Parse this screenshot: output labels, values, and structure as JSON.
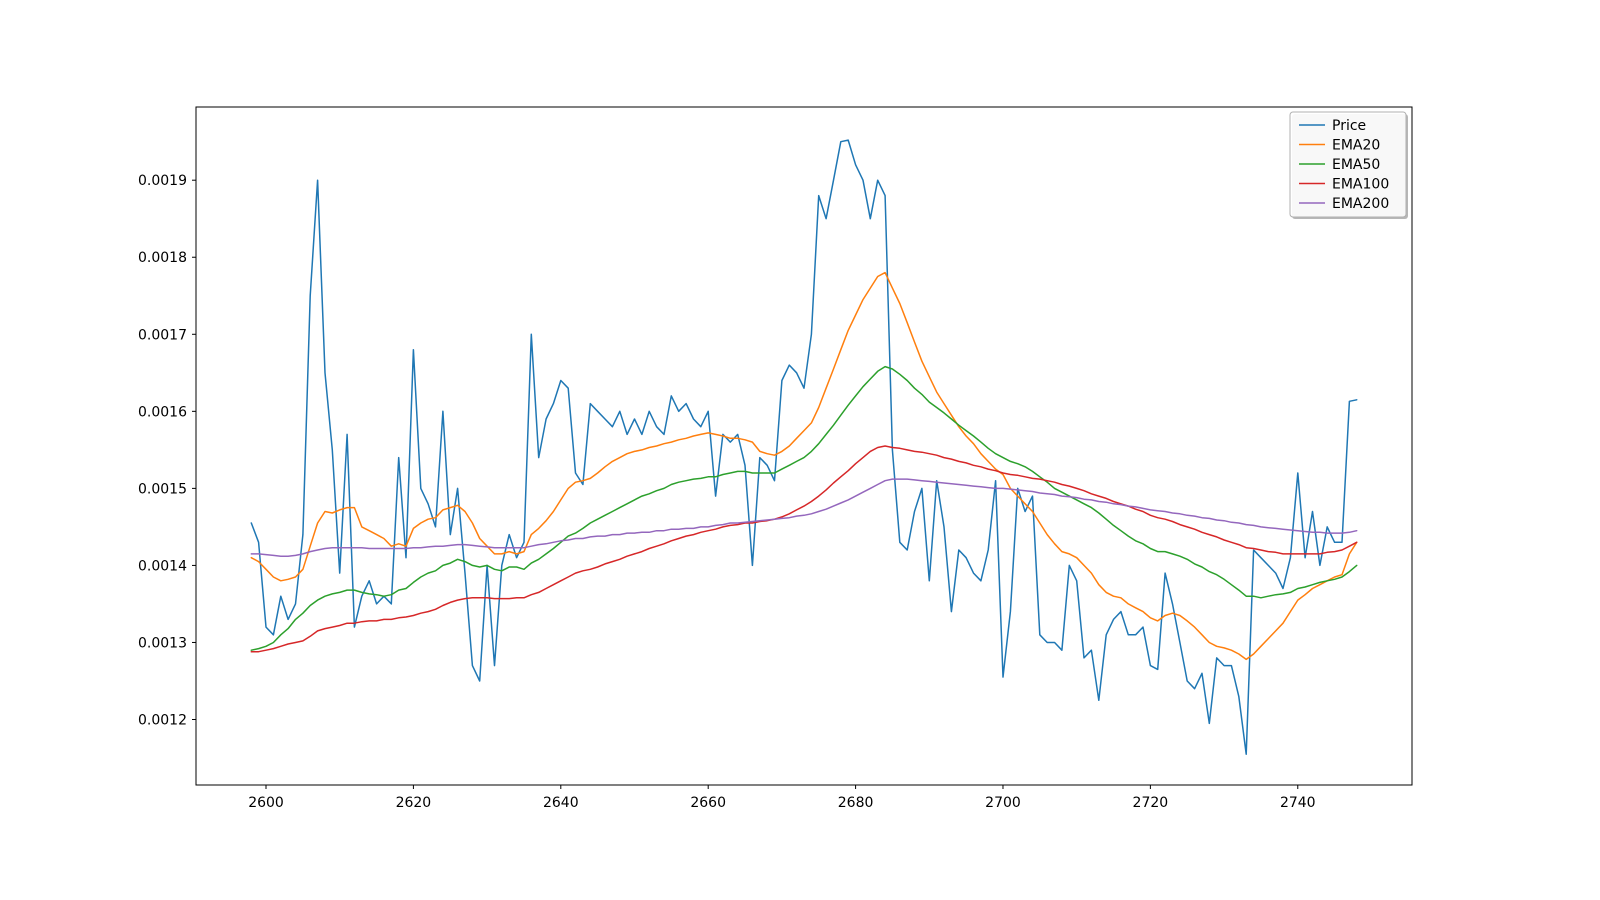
{
  "figure": {
    "background": "#ffffff",
    "plot_background": "#ffffff",
    "spine_color": "#000000",
    "text_color": "#000000"
  },
  "chart_data": {
    "type": "line",
    "title": "",
    "xlabel": "",
    "ylabel": "",
    "grid": false,
    "x_start": 2598,
    "x_step": 1,
    "xlim": [
      2590.5,
      2755.5
    ],
    "ylim": [
      0.001115,
      0.001995
    ],
    "xticks": [
      2600,
      2620,
      2640,
      2660,
      2680,
      2700,
      2720,
      2740
    ],
    "xtick_labels": [
      "2600",
      "2620",
      "2640",
      "2660",
      "2680",
      "2700",
      "2720",
      "2740"
    ],
    "yticks": [
      0.0012,
      0.0013,
      0.0014,
      0.0015,
      0.0016,
      0.0017,
      0.0018,
      0.0019
    ],
    "ytick_labels": [
      "0.0012",
      "0.0013",
      "0.0014",
      "0.0015",
      "0.0016",
      "0.0017",
      "0.0018",
      "0.0019"
    ],
    "legend": {
      "position": "upper right",
      "entries": [
        "Price",
        "EMA20",
        "EMA50",
        "EMA100",
        "EMA200"
      ]
    },
    "series": [
      {
        "name": "Price",
        "color": "#1f77b4",
        "values": [
          0.001455,
          0.00143,
          0.00132,
          0.00131,
          0.00136,
          0.00133,
          0.00135,
          0.00144,
          0.00175,
          0.0019,
          0.00165,
          0.00155,
          0.00139,
          0.00157,
          0.00132,
          0.00136,
          0.00138,
          0.00135,
          0.00136,
          0.00135,
          0.00154,
          0.00141,
          0.00168,
          0.0015,
          0.00148,
          0.00145,
          0.0016,
          0.00144,
          0.0015,
          0.00139,
          0.00127,
          0.00125,
          0.0014,
          0.00127,
          0.0014,
          0.00144,
          0.00141,
          0.00143,
          0.0017,
          0.00154,
          0.00159,
          0.00161,
          0.00164,
          0.00163,
          0.00152,
          0.001505,
          0.00161,
          0.0016,
          0.00159,
          0.00158,
          0.0016,
          0.00157,
          0.00159,
          0.00157,
          0.0016,
          0.00158,
          0.00157,
          0.00162,
          0.0016,
          0.00161,
          0.00159,
          0.00158,
          0.0016,
          0.00149,
          0.00157,
          0.00156,
          0.00157,
          0.00153,
          0.0014,
          0.00154,
          0.00153,
          0.00151,
          0.00164,
          0.00166,
          0.00165,
          0.00163,
          0.0017,
          0.00188,
          0.00185,
          0.0019,
          0.00195,
          0.001952,
          0.00192,
          0.0019,
          0.00185,
          0.0019,
          0.00188,
          0.00155,
          0.00143,
          0.00142,
          0.00147,
          0.0015,
          0.00138,
          0.00151,
          0.00145,
          0.00134,
          0.00142,
          0.00141,
          0.00139,
          0.00138,
          0.00142,
          0.00151,
          0.001255,
          0.00134,
          0.0015,
          0.00147,
          0.00149,
          0.00131,
          0.0013,
          0.0013,
          0.00129,
          0.0014,
          0.00138,
          0.00128,
          0.00129,
          0.001225,
          0.00131,
          0.00133,
          0.00134,
          0.00131,
          0.00131,
          0.00132,
          0.00127,
          0.001265,
          0.00139,
          0.00135,
          0.0013,
          0.00125,
          0.00124,
          0.00126,
          0.001195,
          0.00128,
          0.00127,
          0.00127,
          0.00123,
          0.001155,
          0.00142,
          0.00141,
          0.0014,
          0.00139,
          0.00137,
          0.00141,
          0.00152,
          0.00141,
          0.00147,
          0.0014,
          0.00145,
          0.00143,
          0.00143,
          0.001613,
          0.001615
        ]
      },
      {
        "name": "EMA20",
        "color": "#ff7f0e",
        "values": [
          0.00141,
          0.001405,
          0.001395,
          0.001385,
          0.00138,
          0.001382,
          0.001385,
          0.001395,
          0.001425,
          0.001455,
          0.00147,
          0.001468,
          0.001472,
          0.001475,
          0.001475,
          0.00145,
          0.001445,
          0.00144,
          0.001435,
          0.001425,
          0.001428,
          0.001425,
          0.001448,
          0.001455,
          0.00146,
          0.001462,
          0.001472,
          0.001475,
          0.001478,
          0.00147,
          0.001455,
          0.001435,
          0.001425,
          0.001415,
          0.001415,
          0.001418,
          0.001415,
          0.001418,
          0.00144,
          0.001448,
          0.001458,
          0.00147,
          0.001485,
          0.0015,
          0.001508,
          0.00151,
          0.001513,
          0.00152,
          0.001528,
          0.001535,
          0.00154,
          0.001545,
          0.001548,
          0.00155,
          0.001553,
          0.001555,
          0.001558,
          0.00156,
          0.001563,
          0.001565,
          0.001568,
          0.00157,
          0.001572,
          0.00157,
          0.001568,
          0.001565,
          0.001565,
          0.001563,
          0.00156,
          0.001548,
          0.001545,
          0.001543,
          0.001548,
          0.001555,
          0.001565,
          0.001575,
          0.001585,
          0.001605,
          0.00163,
          0.001655,
          0.00168,
          0.001705,
          0.001725,
          0.001745,
          0.00176,
          0.001775,
          0.00178,
          0.00176,
          0.00174,
          0.001715,
          0.00169,
          0.001665,
          0.001645,
          0.001625,
          0.00161,
          0.001595,
          0.00158,
          0.001568,
          0.001558,
          0.001545,
          0.001535,
          0.001525,
          0.001518,
          0.0015,
          0.00149,
          0.00148,
          0.00147,
          0.001455,
          0.00144,
          0.001428,
          0.001418,
          0.001415,
          0.00141,
          0.0014,
          0.00139,
          0.001375,
          0.001365,
          0.00136,
          0.001358,
          0.00135,
          0.001345,
          0.00134,
          0.001332,
          0.001328,
          0.001335,
          0.001338,
          0.001335,
          0.001328,
          0.00132,
          0.00131,
          0.0013,
          0.001295,
          0.001293,
          0.00129,
          0.001285,
          0.001278,
          0.001285,
          0.001295,
          0.001305,
          0.001315,
          0.001325,
          0.00134,
          0.001355,
          0.001362,
          0.00137,
          0.001375,
          0.00138,
          0.001385,
          0.001388,
          0.001415,
          0.00143
        ]
      },
      {
        "name": "EMA50",
        "color": "#2ca02c",
        "values": [
          0.00129,
          0.001292,
          0.001295,
          0.0013,
          0.00131,
          0.001318,
          0.00133,
          0.001338,
          0.001348,
          0.001355,
          0.00136,
          0.001363,
          0.001365,
          0.001368,
          0.001368,
          0.001365,
          0.001363,
          0.001362,
          0.00136,
          0.001362,
          0.001368,
          0.00137,
          0.001378,
          0.001385,
          0.00139,
          0.001393,
          0.0014,
          0.001403,
          0.001408,
          0.001405,
          0.0014,
          0.001398,
          0.0014,
          0.001395,
          0.001393,
          0.001398,
          0.001398,
          0.001395,
          0.001403,
          0.001408,
          0.001415,
          0.001422,
          0.00143,
          0.001438,
          0.001442,
          0.001448,
          0.001455,
          0.00146,
          0.001465,
          0.00147,
          0.001475,
          0.00148,
          0.001485,
          0.00149,
          0.001493,
          0.001497,
          0.0015,
          0.001505,
          0.001508,
          0.00151,
          0.001512,
          0.001513,
          0.001515,
          0.001515,
          0.001518,
          0.00152,
          0.001522,
          0.001522,
          0.00152,
          0.00152,
          0.00152,
          0.00152,
          0.001525,
          0.00153,
          0.001535,
          0.00154,
          0.001548,
          0.001558,
          0.00157,
          0.001582,
          0.001595,
          0.001608,
          0.00162,
          0.001632,
          0.001642,
          0.001652,
          0.001658,
          0.001655,
          0.001648,
          0.00164,
          0.00163,
          0.001622,
          0.001612,
          0.001605,
          0.001598,
          0.00159,
          0.001582,
          0.001575,
          0.001568,
          0.00156,
          0.001552,
          0.001545,
          0.00154,
          0.001535,
          0.001532,
          0.001528,
          0.001522,
          0.001515,
          0.001508,
          0.0015,
          0.001495,
          0.00149,
          0.001485,
          0.00148,
          0.001475,
          0.001468,
          0.00146,
          0.001452,
          0.001445,
          0.001438,
          0.001432,
          0.001428,
          0.001422,
          0.001418,
          0.001418,
          0.001415,
          0.001412,
          0.001408,
          0.001402,
          0.001398,
          0.001392,
          0.001388,
          0.001382,
          0.001375,
          0.001368,
          0.00136,
          0.00136,
          0.001358,
          0.00136,
          0.001362,
          0.001363,
          0.001365,
          0.00137,
          0.001372,
          0.001375,
          0.001378,
          0.00138,
          0.001382,
          0.001385,
          0.001392,
          0.0014
        ]
      },
      {
        "name": "EMA100",
        "color": "#d62728",
        "values": [
          0.001288,
          0.001288,
          0.00129,
          0.001292,
          0.001295,
          0.001298,
          0.0013,
          0.001302,
          0.001308,
          0.001315,
          0.001318,
          0.00132,
          0.001322,
          0.001325,
          0.001325,
          0.001327,
          0.001328,
          0.001328,
          0.00133,
          0.00133,
          0.001332,
          0.001333,
          0.001335,
          0.001338,
          0.00134,
          0.001343,
          0.001348,
          0.001352,
          0.001355,
          0.001357,
          0.001358,
          0.001358,
          0.001358,
          0.001357,
          0.001357,
          0.001357,
          0.001358,
          0.001358,
          0.001362,
          0.001365,
          0.00137,
          0.001375,
          0.00138,
          0.001385,
          0.00139,
          0.001393,
          0.001395,
          0.001398,
          0.001402,
          0.001405,
          0.001408,
          0.001412,
          0.001415,
          0.001418,
          0.001422,
          0.001425,
          0.001428,
          0.001432,
          0.001435,
          0.001438,
          0.00144,
          0.001443,
          0.001445,
          0.001447,
          0.00145,
          0.001452,
          0.001453,
          0.001455,
          0.001455,
          0.001457,
          0.001458,
          0.00146,
          0.001463,
          0.001467,
          0.001472,
          0.001477,
          0.001483,
          0.00149,
          0.001498,
          0.001507,
          0.001515,
          0.001523,
          0.001532,
          0.00154,
          0.001548,
          0.001553,
          0.001555,
          0.001553,
          0.001552,
          0.00155,
          0.001548,
          0.001547,
          0.001545,
          0.001543,
          0.00154,
          0.001538,
          0.001535,
          0.001533,
          0.00153,
          0.001528,
          0.001525,
          0.001523,
          0.00152,
          0.001518,
          0.001517,
          0.001515,
          0.001513,
          0.001512,
          0.00151,
          0.001508,
          0.001505,
          0.001503,
          0.0015,
          0.001497,
          0.001493,
          0.00149,
          0.001487,
          0.001483,
          0.00148,
          0.001477,
          0.001473,
          0.00147,
          0.001465,
          0.001462,
          0.00146,
          0.001457,
          0.001453,
          0.00145,
          0.001447,
          0.001443,
          0.00144,
          0.001437,
          0.001433,
          0.00143,
          0.001427,
          0.001423,
          0.001422,
          0.00142,
          0.001418,
          0.001417,
          0.001415,
          0.001415,
          0.001415,
          0.001415,
          0.001415,
          0.001415,
          0.001417,
          0.001418,
          0.00142,
          0.001425,
          0.00143
        ]
      },
      {
        "name": "EMA200",
        "color": "#9467bd",
        "values": [
          0.001415,
          0.001415,
          0.001414,
          0.001413,
          0.001412,
          0.001412,
          0.001413,
          0.001415,
          0.001418,
          0.00142,
          0.001422,
          0.001423,
          0.001423,
          0.001423,
          0.001423,
          0.001423,
          0.001422,
          0.001422,
          0.001422,
          0.001422,
          0.001422,
          0.001422,
          0.001423,
          0.001423,
          0.001424,
          0.001425,
          0.001425,
          0.001426,
          0.001427,
          0.001427,
          0.001426,
          0.001425,
          0.001424,
          0.001423,
          0.001423,
          0.001423,
          0.001423,
          0.001423,
          0.001425,
          0.001427,
          0.001428,
          0.00143,
          0.001432,
          0.001433,
          0.001435,
          0.001435,
          0.001437,
          0.001438,
          0.001438,
          0.00144,
          0.00144,
          0.001442,
          0.001442,
          0.001443,
          0.001443,
          0.001445,
          0.001445,
          0.001447,
          0.001447,
          0.001448,
          0.001448,
          0.00145,
          0.00145,
          0.001452,
          0.001453,
          0.001455,
          0.001455,
          0.001456,
          0.001457,
          0.001458,
          0.001459,
          0.00146,
          0.001461,
          0.001462,
          0.001464,
          0.001465,
          0.001467,
          0.00147,
          0.001473,
          0.001477,
          0.001481,
          0.001485,
          0.00149,
          0.001495,
          0.0015,
          0.001505,
          0.00151,
          0.001512,
          0.001512,
          0.001512,
          0.001511,
          0.00151,
          0.001509,
          0.001508,
          0.001507,
          0.001506,
          0.001505,
          0.001504,
          0.001503,
          0.001502,
          0.001501,
          0.0015,
          0.0015,
          0.001499,
          0.001498,
          0.001497,
          0.001496,
          0.001494,
          0.001493,
          0.001492,
          0.00149,
          0.001489,
          0.001488,
          0.001486,
          0.001485,
          0.001483,
          0.001482,
          0.00148,
          0.001479,
          0.001477,
          0.001476,
          0.001474,
          0.001472,
          0.001471,
          0.00147,
          0.001468,
          0.001467,
          0.001465,
          0.001464,
          0.001462,
          0.001461,
          0.001459,
          0.001458,
          0.001456,
          0.001455,
          0.001453,
          0.001452,
          0.00145,
          0.001449,
          0.001448,
          0.001447,
          0.001446,
          0.001445,
          0.001444,
          0.001443,
          0.001443,
          0.001442,
          0.001442,
          0.001442,
          0.001443,
          0.001445
        ]
      }
    ]
  }
}
